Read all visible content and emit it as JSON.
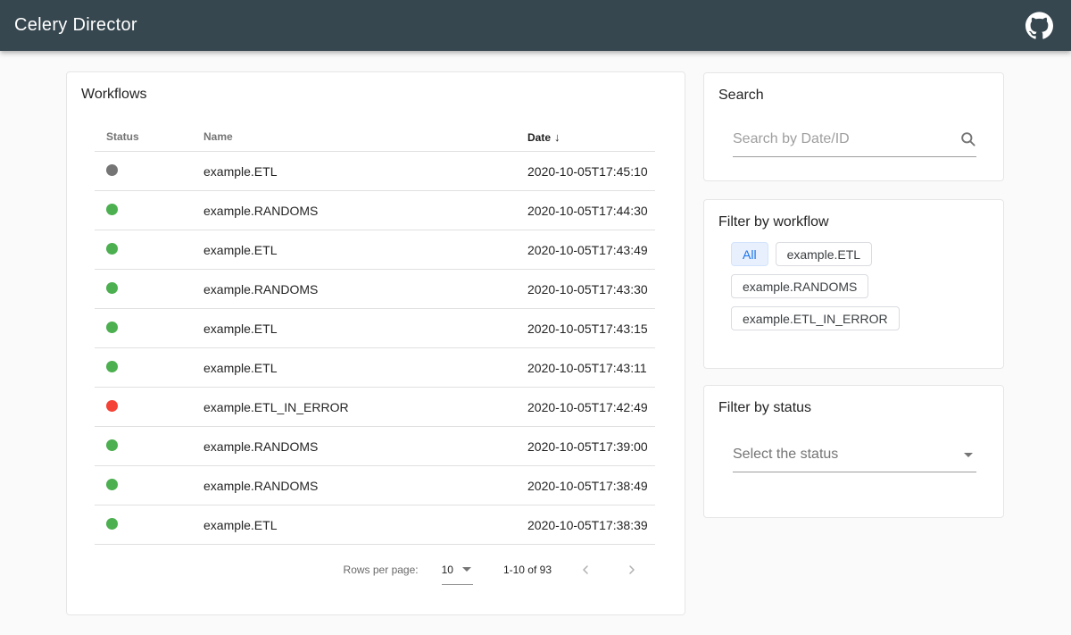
{
  "app": {
    "title": "Celery Director"
  },
  "colors": {
    "header_bg": "#37474f",
    "accent_blue": "#1a73e8",
    "chip_active_bg": "#e8f0fe",
    "status": {
      "success": "#4caf50",
      "error": "#f44336",
      "pending": "#757575"
    }
  },
  "workflows_card": {
    "title": "Workflows",
    "columns": {
      "status": "Status",
      "name": "Name",
      "date": "Date"
    },
    "sort_icon": "↓",
    "rows": [
      {
        "status": "pending",
        "name": "example.ETL",
        "date": "2020-10-05T17:45:10"
      },
      {
        "status": "success",
        "name": "example.RANDOMS",
        "date": "2020-10-05T17:44:30"
      },
      {
        "status": "success",
        "name": "example.ETL",
        "date": "2020-10-05T17:43:49"
      },
      {
        "status": "success",
        "name": "example.RANDOMS",
        "date": "2020-10-05T17:43:30"
      },
      {
        "status": "success",
        "name": "example.ETL",
        "date": "2020-10-05T17:43:15"
      },
      {
        "status": "success",
        "name": "example.ETL",
        "date": "2020-10-05T17:43:11"
      },
      {
        "status": "error",
        "name": "example.ETL_IN_ERROR",
        "date": "2020-10-05T17:42:49"
      },
      {
        "status": "success",
        "name": "example.RANDOMS",
        "date": "2020-10-05T17:39:00"
      },
      {
        "status": "success",
        "name": "example.RANDOMS",
        "date": "2020-10-05T17:38:49"
      },
      {
        "status": "success",
        "name": "example.ETL",
        "date": "2020-10-05T17:38:39"
      }
    ],
    "pagination": {
      "rows_per_page_label": "Rows per page:",
      "rows_per_page_value": "10",
      "range_label": "1-10 of 93"
    }
  },
  "search_card": {
    "title": "Search",
    "placeholder": "Search by Date/ID"
  },
  "workflow_filter_card": {
    "title": "Filter by workflow",
    "chips": [
      {
        "label": "All",
        "active": true
      },
      {
        "label": "example.ETL",
        "active": false
      },
      {
        "label": "example.RANDOMS",
        "active": false
      },
      {
        "label": "example.ETL_IN_ERROR",
        "active": false
      }
    ]
  },
  "status_filter_card": {
    "title": "Filter by status",
    "placeholder": "Select the status"
  }
}
